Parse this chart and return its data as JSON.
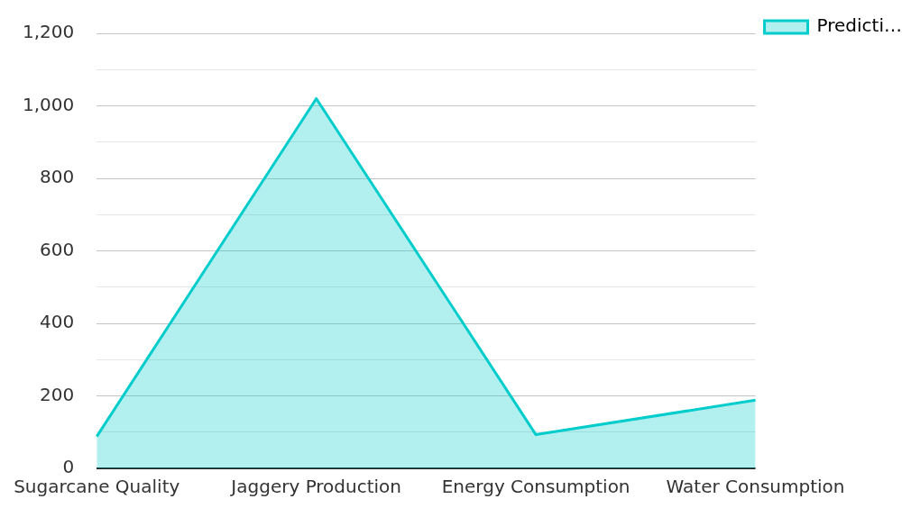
{
  "chart_data": {
    "type": "area",
    "categories": [
      "Sugarcane Quality",
      "Jaggery Production",
      "Energy Consumption",
      "Water Consumption"
    ],
    "series": [
      {
        "name": "Predicti…",
        "color": "#00cccc",
        "values": [
          88,
          1020,
          93,
          188
        ]
      }
    ],
    "ylim": [
      0,
      1200
    ],
    "yticks": [
      0,
      {
        "value": 100,
        "label": null
      },
      200,
      {
        "value": 300,
        "label": null
      },
      400,
      {
        "value": 500,
        "label": null
      },
      600,
      {
        "value": 700,
        "label": null
      },
      800,
      {
        "value": 900,
        "label": null
      },
      {
        "value": 1000,
        "label": "1,000"
      },
      {
        "value": 1100,
        "label": null
      },
      {
        "value": 1200,
        "label": "1,200"
      }
    ],
    "grid": "y",
    "legend": "top right",
    "marker": "none",
    "line_style": "solid"
  }
}
